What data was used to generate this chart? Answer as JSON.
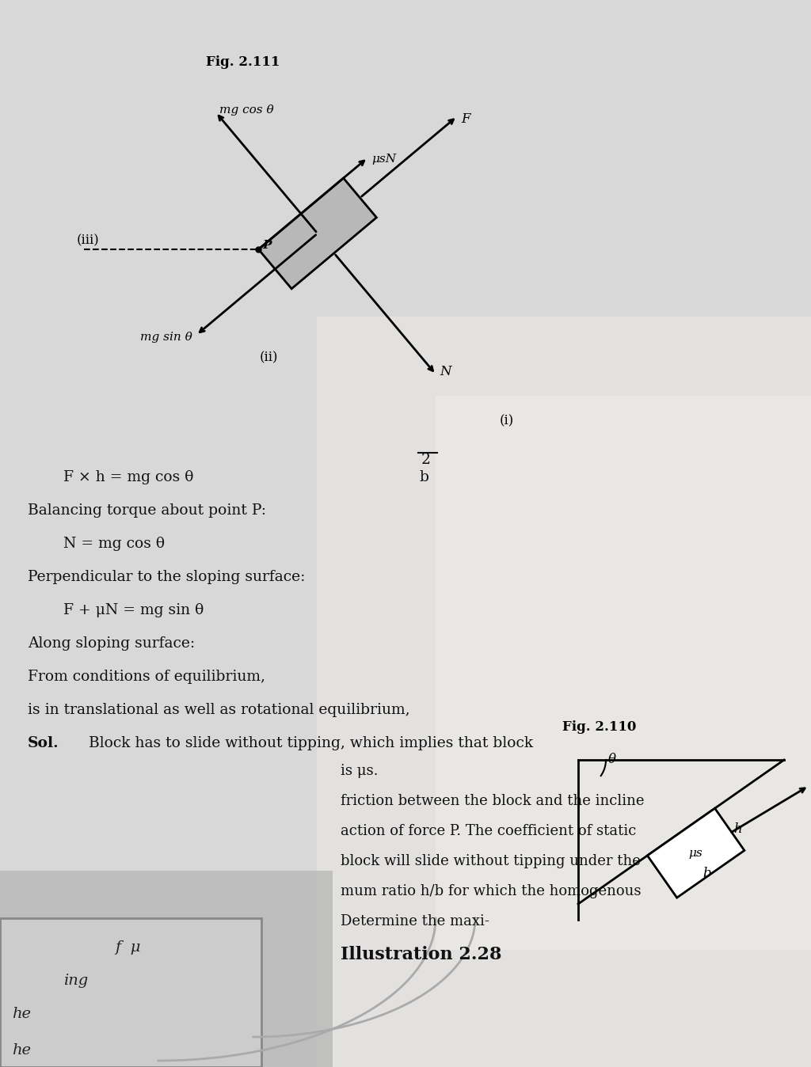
{
  "bg_outer": "#b0b0b0",
  "bg_page_light": "#e8e8e8",
  "bg_page_dark": "#c8c8c8",
  "bg_shadow": "#a0a0a0",
  "text_color": "#1a1a1a",
  "title": "Illustration 2.28",
  "problem_lines": [
    "Determine the maxi-",
    "mum ratio h/b for which the homogenous",
    "block will slide without tipping under the",
    "action of force P. The coefficient of static",
    "friction between the block and the incline",
    "is μs."
  ],
  "sol_line1_bold": "Sol.",
  "sol_line1_rest": "  Block has to slide without tipping, which implies that block",
  "sol_lines": [
    "is in translational as well as rotational equilibrium,",
    "From conditions of equilibrium,",
    "Along sloping surface:",
    "F + μN = mg sin θ",
    "Perpendicular to the sloping surface:",
    "N = mg cos θ",
    "Balancing torque about point P:",
    "F × h = mg cos θ"
  ],
  "fig110_label": "Fig. 2.110",
  "fig111_label": "Fig. 2.111",
  "box_texts": [
    "he",
    "he",
    "ing",
    "f μ"
  ],
  "num_i": "(i)",
  "num_ii": "(ii)",
  "num_iii": "(iii)"
}
